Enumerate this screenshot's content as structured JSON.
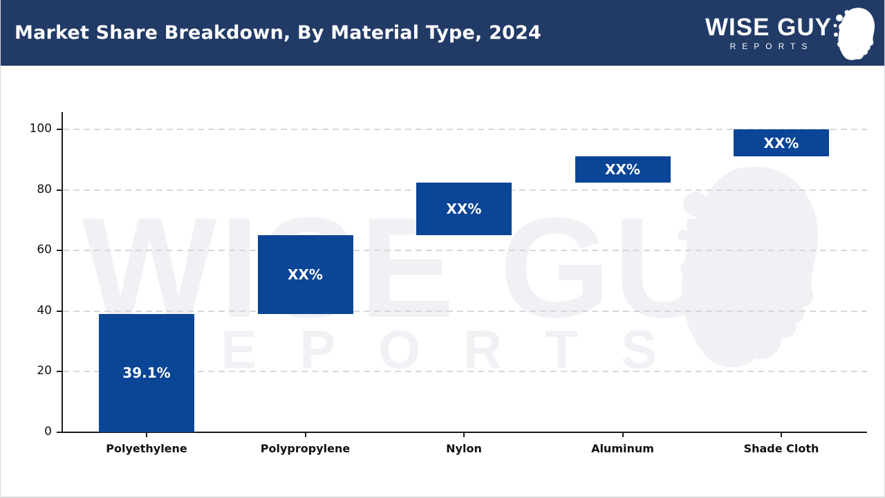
{
  "header": {
    "title": "Market Share Breakdown, By Material Type, 2024",
    "logo": {
      "line1": "WISE GUY",
      "line2": "REPORTS"
    }
  },
  "colors": {
    "header_bg": "#213a66",
    "bar": "#0b4596",
    "bar_label": "#ffffff",
    "grid": "#d7d7d7",
    "axis": "#1a1a1a",
    "tick_label": "#111111",
    "watermark": "#f0f1f4"
  },
  "chart_data": {
    "type": "bar",
    "subtype": "waterfall",
    "title": "Market Share Breakdown, By Material Type, 2024",
    "xlabel": "",
    "ylabel": "",
    "categories": [
      "Polyethylene",
      "Polypropylene",
      "Nylon",
      "Aluminum",
      "Shade Cloth"
    ],
    "segments": [
      {
        "category": "Polyethylene",
        "start": 0,
        "end": 39.1,
        "label": "39.1%"
      },
      {
        "category": "Polypropylene",
        "start": 39.1,
        "end": 65,
        "label": "XX%"
      },
      {
        "category": "Nylon",
        "start": 65,
        "end": 82.5,
        "label": "XX%"
      },
      {
        "category": "Aluminum",
        "start": 82.5,
        "end": 91,
        "label": "XX%"
      },
      {
        "category": "Shade Cloth",
        "start": 91,
        "end": 100,
        "label": "XX%"
      }
    ],
    "yticks": [
      0,
      20,
      40,
      60,
      80,
      100
    ],
    "ylim": [
      0,
      105
    ],
    "grid": "horizontal-dashed",
    "legend": "none",
    "watermark": {
      "line1": "WISE GUY",
      "line2": "REPORTS"
    }
  }
}
